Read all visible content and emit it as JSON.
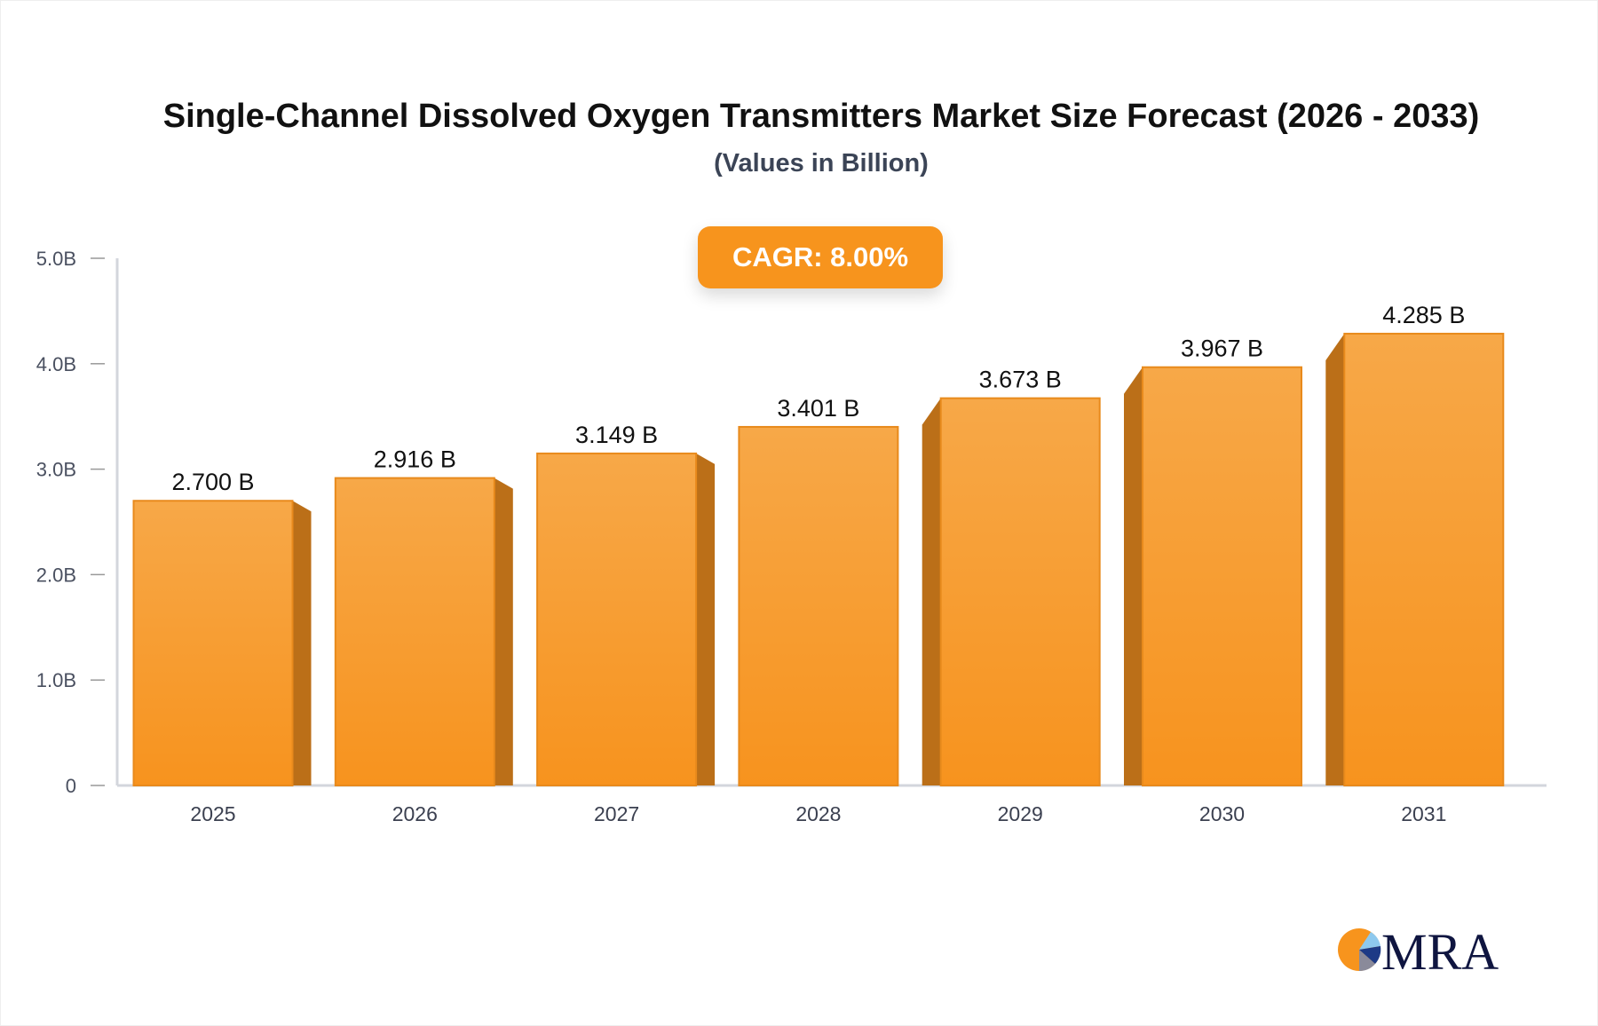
{
  "chart_data": {
    "type": "bar",
    "title": "Single-Channel Dissolved Oxygen Transmitters Market Size Forecast (2026 - 2033)",
    "subtitle": "(Values in Billion)",
    "categories": [
      "2025",
      "2026",
      "2027",
      "2028",
      "2029",
      "2030",
      "2031"
    ],
    "values": [
      2.7,
      2.916,
      3.149,
      3.401,
      3.673,
      3.967,
      4.285
    ],
    "data_labels": [
      "2.700 B",
      "2.916 B",
      "3.149 B",
      "3.401 B",
      "3.673 B",
      "3.967 B",
      "4.285 B"
    ],
    "ylim": [
      0,
      5
    ],
    "y_ticks": [
      0,
      1,
      2,
      3,
      4,
      5
    ],
    "y_tick_labels": [
      "0",
      "1.0B",
      "2.0B",
      "3.0B",
      "4.0B",
      "5.0B"
    ],
    "xlabel": "",
    "ylabel": "",
    "grid": false,
    "bar_color": "#f7a545",
    "bar_side_color": "#bb6f18",
    "annotation": "CAGR: 8.00%"
  },
  "logo": {
    "text": "MRA"
  }
}
